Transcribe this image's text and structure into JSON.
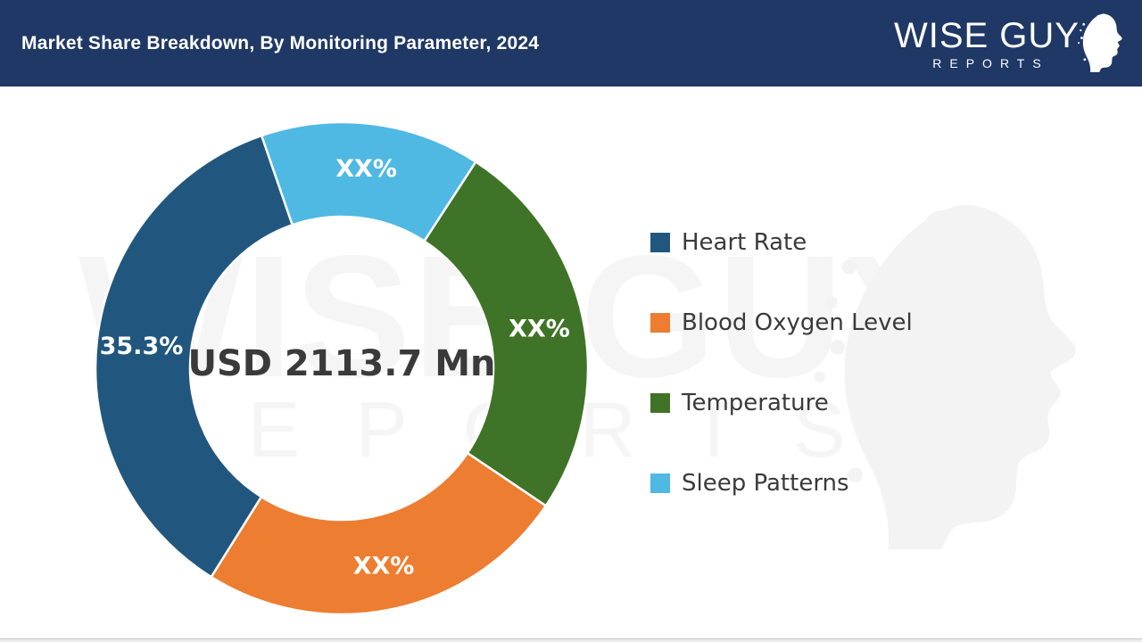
{
  "header": {
    "title": "Market Share Breakdown, By Monitoring Parameter, 2024",
    "logo": {
      "line1": "WISE GUY",
      "line2": "REPORTS"
    }
  },
  "watermark": {
    "line1": "WISE GUY",
    "line2": "REPORTS"
  },
  "chart_data": {
    "type": "pie",
    "subtype": "donut",
    "title": "Market Share Breakdown, By Monitoring Parameter, 2024",
    "center_label": "USD 2113.7 Mn",
    "legend_position": "right",
    "grid": false,
    "segments": [
      {
        "label": "Sleep Patterns",
        "display_value": "XX%",
        "percent_est": 14.4,
        "color": "#4FB9E3",
        "start_deg": -19,
        "end_deg": 33
      },
      {
        "label": "Temperature",
        "display_value": "XX%",
        "percent_est": 25.3,
        "color": "#3F7328",
        "start_deg": 33,
        "end_deg": 124
      },
      {
        "label": "Blood Oxygen Level",
        "display_value": "XX%",
        "percent_est": 24.4,
        "color": "#ED7D31",
        "start_deg": 124,
        "end_deg": 212
      },
      {
        "label": "Heart Rate",
        "display_value": "35.3%",
        "percent_est": 35.3,
        "color": "#21577E",
        "start_deg": 212,
        "end_deg": 341
      }
    ],
    "legend": [
      {
        "label": "Heart Rate",
        "color": "#21577E"
      },
      {
        "label": "Blood Oxygen Level",
        "color": "#ED7D31"
      },
      {
        "label": "Temperature",
        "color": "#3F7328"
      },
      {
        "label": "Sleep Patterns",
        "color": "#4FB9E3"
      }
    ]
  }
}
